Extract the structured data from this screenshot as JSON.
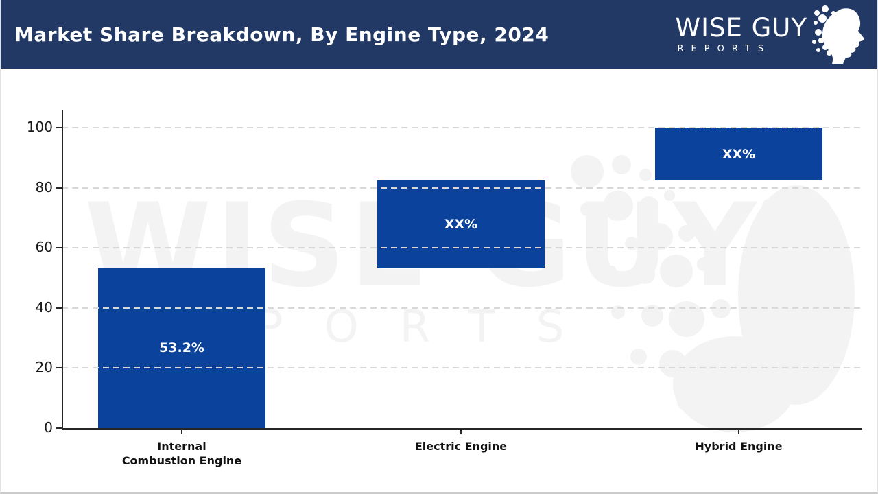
{
  "header": {
    "title": "Market Share Breakdown, By Engine Type, 2024",
    "logo": {
      "line1": "WISE GUY",
      "line2": "REPORTS"
    }
  },
  "watermark": {
    "line1": "WISE GUY",
    "line2": "REPORTS"
  },
  "chart_data": {
    "type": "bar",
    "subtype": "waterfall",
    "title": "Market Share Breakdown, By Engine Type, 2024",
    "categories": [
      "Internal Combustion Engine",
      "Electric Engine",
      "Hybrid Engine"
    ],
    "categories_lines": [
      [
        "Internal",
        "Combustion Engine"
      ],
      [
        "Electric Engine"
      ],
      [
        "Hybrid Engine"
      ]
    ],
    "segments": [
      {
        "category": "Internal Combustion Engine",
        "start": 0,
        "end": 53.2,
        "label": "53.2%"
      },
      {
        "category": "Electric Engine",
        "start": 53.2,
        "end": 82.4,
        "label": "XX%"
      },
      {
        "category": "Hybrid Engine",
        "start": 82.4,
        "end": 100,
        "label": "XX%"
      }
    ],
    "values": [
      53.2,
      29.2,
      17.6
    ],
    "ylim": [
      0,
      100
    ],
    "yticks": [
      0,
      20,
      40,
      60,
      80,
      100
    ],
    "xlabel": "",
    "ylabel": "",
    "grid": "horizontal-dashed",
    "legend": "none",
    "bar_color": "#0b429c",
    "bar_label_color": "#ffffff"
  },
  "colors": {
    "header_bg": "#213964",
    "bar": "#0b429c",
    "axis": "#262626",
    "grid": "#d8d8d8",
    "watermark": "#f3f3f3"
  }
}
